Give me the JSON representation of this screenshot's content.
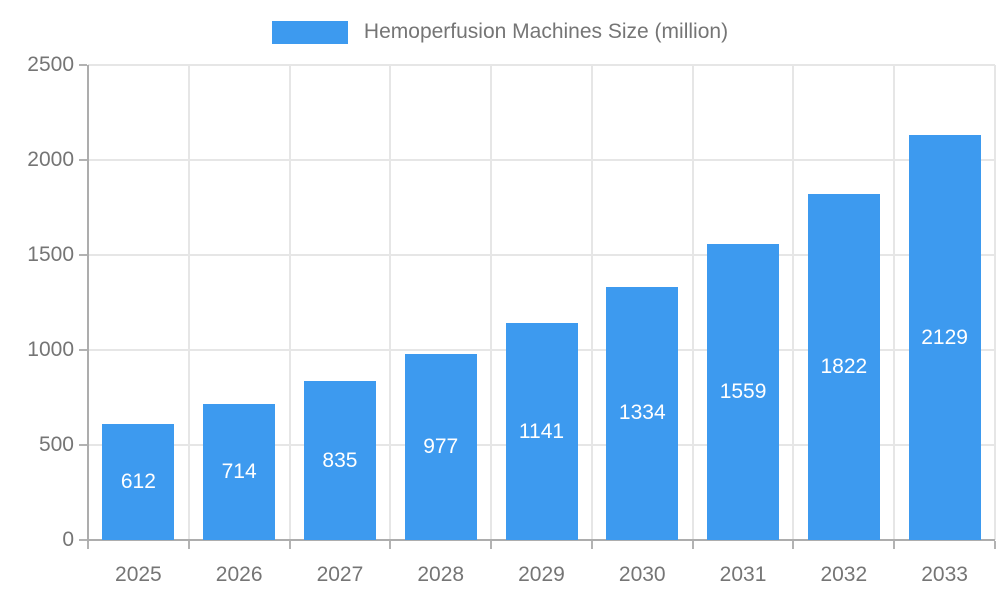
{
  "chart_data": {
    "type": "bar",
    "title": "Hemoperfusion Machines Size (million)",
    "categories": [
      "2025",
      "2026",
      "2027",
      "2028",
      "2029",
      "2030",
      "2031",
      "2032",
      "2033"
    ],
    "values": [
      612,
      714,
      835,
      977,
      1141,
      1334,
      1559,
      1822,
      2129
    ],
    "series": [
      {
        "name": "Hemoperfusion Machines Size (million)",
        "values": [
          612,
          714,
          835,
          977,
          1141,
          1334,
          1559,
          1822,
          2129
        ]
      }
    ],
    "xlabel": "",
    "ylabel": "",
    "ylim": [
      0,
      2500
    ],
    "y_ticks": [
      0,
      500,
      1000,
      1500,
      2000,
      2500
    ],
    "grid": "both",
    "legend_position": "top-center",
    "value_labels": "inside-center"
  },
  "legend": {
    "label": "Hemoperfusion Machines Size (million)"
  },
  "colors": {
    "bar": "#3D9AEF",
    "bar_label_text": "#FFFFFF",
    "axis_line": "#ADADAD",
    "grid_line": "#E6E6E6",
    "tick_mark": "#B3B3B3",
    "tick_text": "#757575",
    "background": "#FFFFFF"
  }
}
